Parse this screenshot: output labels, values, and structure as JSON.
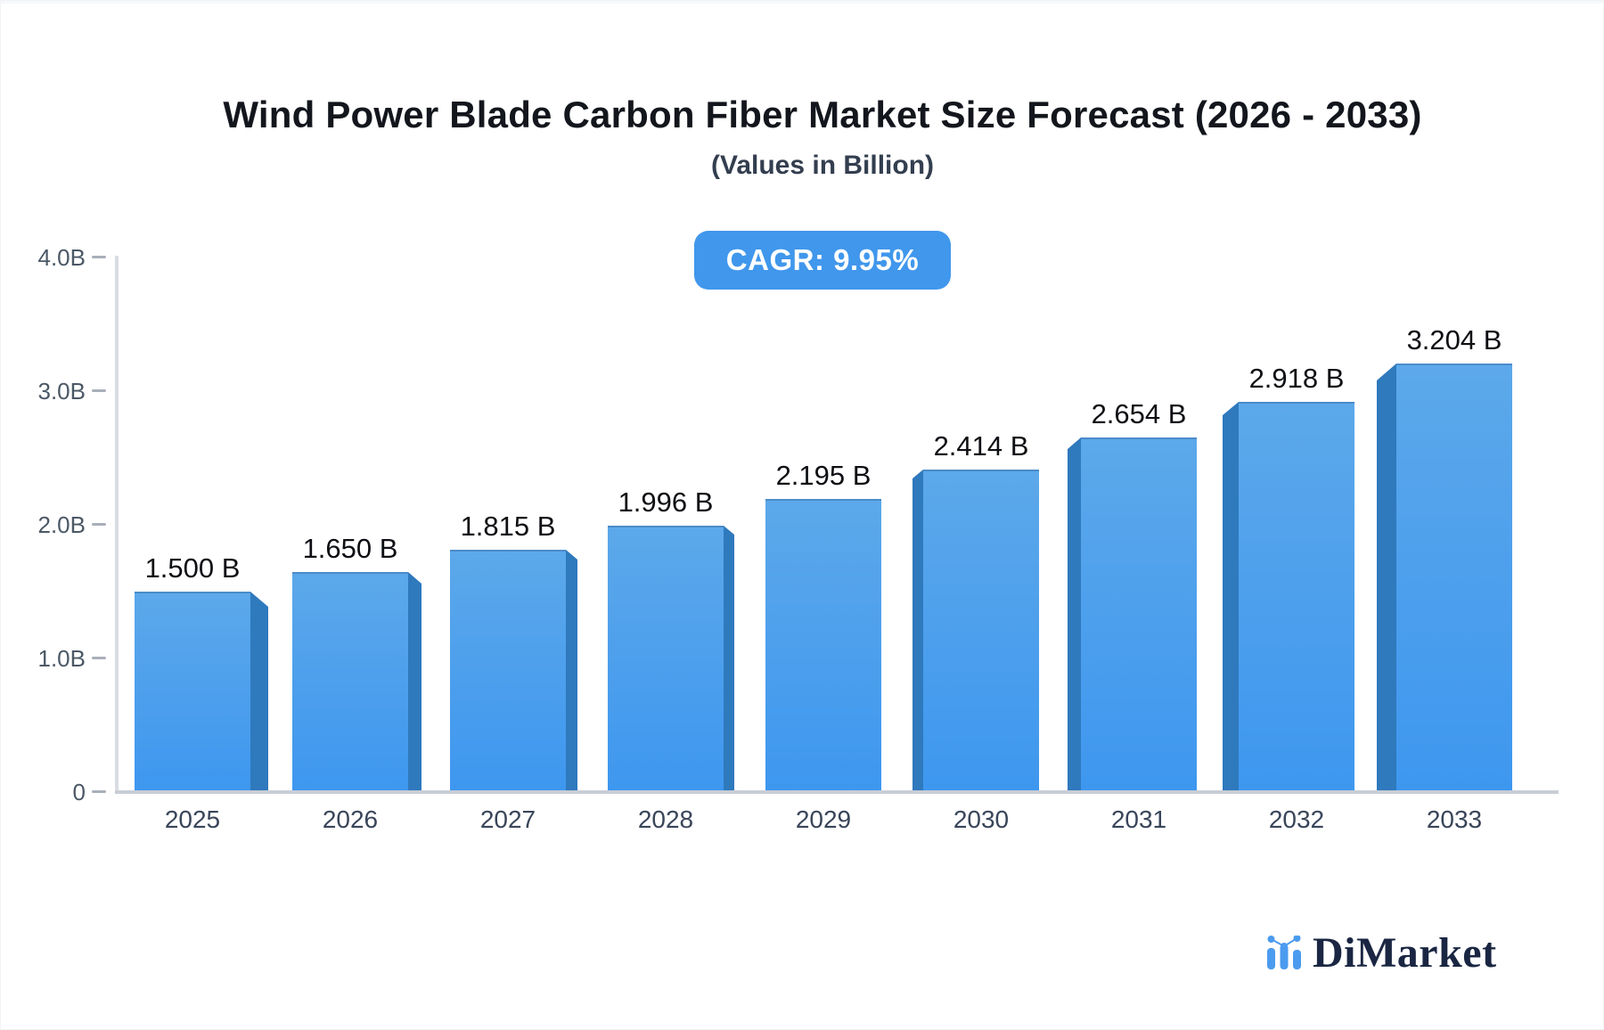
{
  "chart_data": {
    "type": "bar",
    "title": "Wind Power Blade Carbon Fiber Market Size Forecast (2026 - 2033)",
    "subtitle": "(Values in Billion)",
    "annotation": "CAGR: 9.95%",
    "categories": [
      "2025",
      "2026",
      "2027",
      "2028",
      "2029",
      "2030",
      "2031",
      "2032",
      "2033"
    ],
    "values": [
      1.5,
      1.65,
      1.815,
      1.996,
      2.195,
      2.414,
      2.654,
      2.918,
      3.204
    ],
    "bar_labels": [
      "1.500 B",
      "1.650 B",
      "1.815 B",
      "1.996 B",
      "2.195 B",
      "2.414 B",
      "2.654 B",
      "2.918 B",
      "3.204 B"
    ],
    "y_ticks": [
      {
        "label": "4.0B",
        "value": 4.0
      },
      {
        "label": "3.0B",
        "value": 3.0
      },
      {
        "label": "2.0B",
        "value": 2.0
      },
      {
        "label": "1.0B",
        "value": 1.0
      },
      {
        "label": "0",
        "value": 0.0
      }
    ],
    "ylim": [
      0,
      4.0
    ],
    "xlabel": "",
    "ylabel": "",
    "grid": false,
    "legend": false,
    "bar_style": "3d-gradient"
  },
  "branding": {
    "logo_text": "DiMarket",
    "logo_icon": "mini-bar-chart-trend-icon"
  },
  "colors": {
    "bar_face_top": "#5CA8EA",
    "bar_face_bottom": "#3E97EF",
    "bar_side": "#2F79BD",
    "badge_bg": "#4097EC",
    "badge_text": "#FFFFFF",
    "title_text": "#13161C",
    "subtitle_text": "#333E4F",
    "value_text": "#0D0F13",
    "tick_text": "#4B5866",
    "year_text": "#39455A",
    "axis_line": "#DADCE3",
    "baseline": "#C9CDD5",
    "logo_text_color": "#1A2642",
    "logo_icon_color": "#4B9BEF"
  }
}
